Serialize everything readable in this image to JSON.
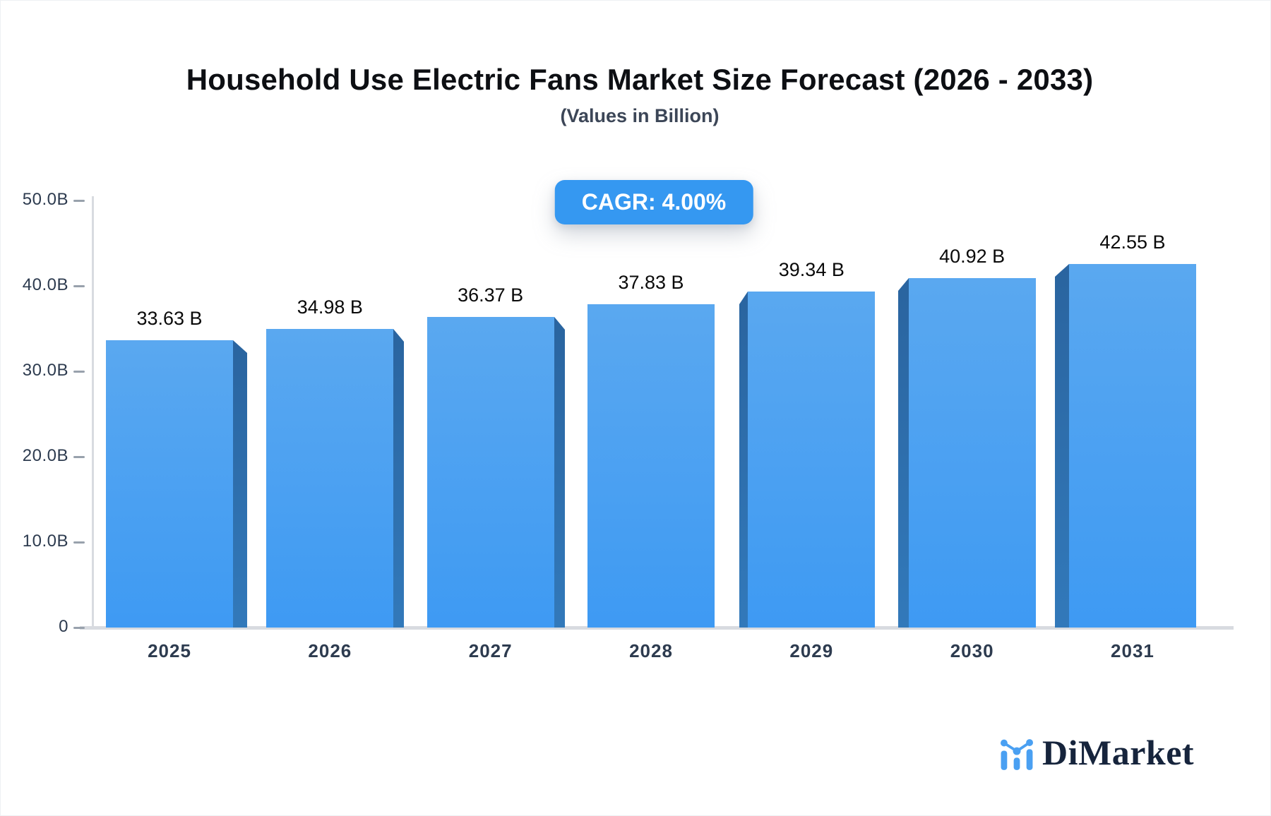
{
  "header": {
    "title": "Household Use Electric Fans Market Size Forecast (2026 - 2033)",
    "subtitle": "(Values in Billion)"
  },
  "badge": {
    "label": "CAGR: 4.00%",
    "bg_color": "#3598f1",
    "text_color": "#ffffff"
  },
  "chart_data": {
    "type": "bar",
    "title": "Household Use Electric Fans Market Size Forecast (2026 - 2033)",
    "subtitle": "(Values in Billion)",
    "categories": [
      "2025",
      "2026",
      "2027",
      "2028",
      "2029",
      "2030",
      "2031"
    ],
    "values": [
      33.63,
      34.98,
      36.37,
      37.83,
      39.34,
      40.92,
      42.55
    ],
    "value_labels": [
      "33.63 B",
      "34.98 B",
      "36.37 B",
      "37.83 B",
      "39.34 B",
      "40.92 B",
      "42.55 B"
    ],
    "xlabel": "",
    "ylabel": "",
    "ylim": [
      0,
      50
    ],
    "yticks": [
      {
        "value": 0,
        "label": "0"
      },
      {
        "value": 10,
        "label": "10.0B"
      },
      {
        "value": 20,
        "label": "20.0B"
      },
      {
        "value": 30,
        "label": "30.0B"
      },
      {
        "value": 40,
        "label": "40.0B"
      },
      {
        "value": 50,
        "label": "50.0B"
      }
    ],
    "grid": false,
    "legend": false,
    "style": "3d-perspective-bars",
    "colors": {
      "bar_face_top": "#5aa8f0",
      "bar_face_bottom": "#3e9af3",
      "bar_side_top": "#2a649f",
      "bar_side_bottom": "#3279ba",
      "axis_line": "#d8dbe0",
      "tick_mark": "#98a1ac",
      "tick_label": "#2d3b4f",
      "value_label": "#0a0a0a"
    }
  },
  "logo": {
    "text": "DiMarket",
    "icon": "bar-chart-logo-icon",
    "icon_color": "#4aa0f2",
    "text_color": "#16243c"
  }
}
